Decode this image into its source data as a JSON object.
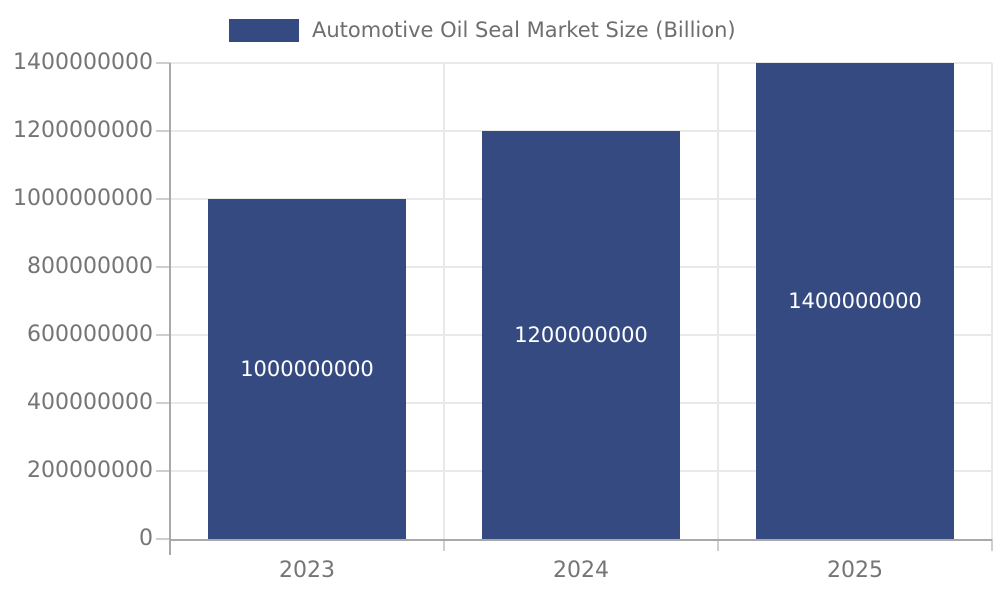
{
  "chart_data": {
    "type": "bar",
    "title": "",
    "legend": {
      "label": "Automotive Oil Seal Market Size (Billion)",
      "position": "top-center"
    },
    "categories": [
      "2023",
      "2024",
      "2025"
    ],
    "series": [
      {
        "name": "Automotive Oil Seal Market Size (Billion)",
        "values": [
          1000000000,
          1200000000,
          1400000000
        ]
      }
    ],
    "bar_value_labels": [
      "1000000000",
      "1200000000",
      "1400000000"
    ],
    "ytick_values": [
      0,
      200000000,
      400000000,
      600000000,
      800000000,
      1000000000,
      1200000000,
      1400000000
    ],
    "ytick_labels": [
      "0",
      "200000000",
      "400000000",
      "600000000",
      "800000000",
      "1000000000",
      "1200000000",
      "1400000000"
    ],
    "ylim": [
      0,
      1400000000
    ],
    "xlabel": "",
    "ylabel": "",
    "grid": true,
    "colors": {
      "bar_fill": "#364a82",
      "grid_line": "#e9e9e9",
      "axis_line": "#a9a9a9",
      "tick_mark": "#cfcfcf",
      "tick_label_text": "#757575",
      "legend_text": "#6e6e6e",
      "bar_label_text": "#ffffff"
    }
  }
}
